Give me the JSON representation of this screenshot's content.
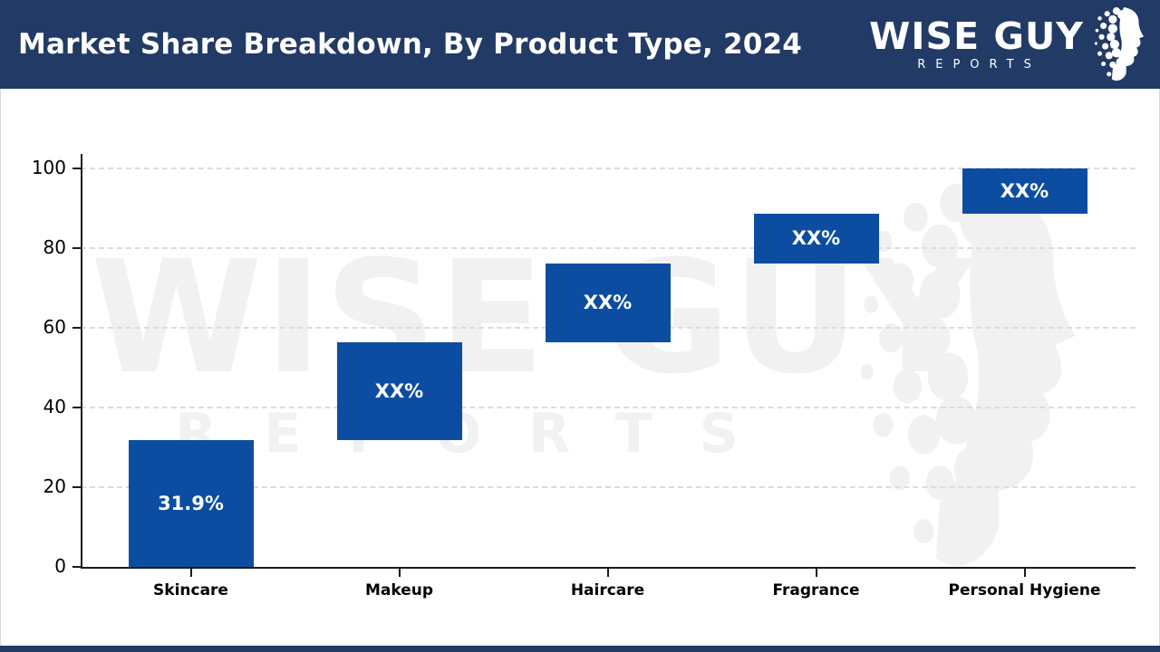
{
  "header": {
    "title": "Market Share Breakdown, By Product Type, 2024"
  },
  "logo": {
    "line1": "WISE GUY",
    "line2": "REPORTS"
  },
  "watermark": {
    "line1": "WISE GUY",
    "line2": "REPORTS"
  },
  "colors": {
    "header_bg": "#223a66",
    "footer_bg": "#223a66",
    "bar": "#0c4da2",
    "bar_label": "#ffffff",
    "grid": "#dcdcdc",
    "axis": "#1a1a1a",
    "watermark": "#f1f1f1"
  },
  "chart_data": {
    "type": "bar",
    "subtype": "waterfall",
    "title": "Market Share Breakdown, By Product Type, 2024",
    "categories": [
      "Skincare",
      "Makeup",
      "Haircare",
      "Fragrance",
      "Personal Hygiene"
    ],
    "segments": [
      {
        "category": "Skincare",
        "start": 0,
        "end": 31.9,
        "label": "31.9%"
      },
      {
        "category": "Makeup",
        "start": 31.9,
        "end": 56.3,
        "label": "XX%"
      },
      {
        "category": "Haircare",
        "start": 56.3,
        "end": 76.2,
        "label": "XX%"
      },
      {
        "category": "Fragrance",
        "start": 76.2,
        "end": 88.7,
        "label": "XX%"
      },
      {
        "category": "Personal Hygiene",
        "start": 88.7,
        "end": 100,
        "label": "XX%"
      }
    ],
    "xlabel": "",
    "ylabel": "",
    "ylim": [
      0,
      100
    ],
    "yticks": [
      0,
      20,
      40,
      60,
      80,
      100
    ],
    "grid": "dashed-horizontal",
    "legend": "none"
  }
}
